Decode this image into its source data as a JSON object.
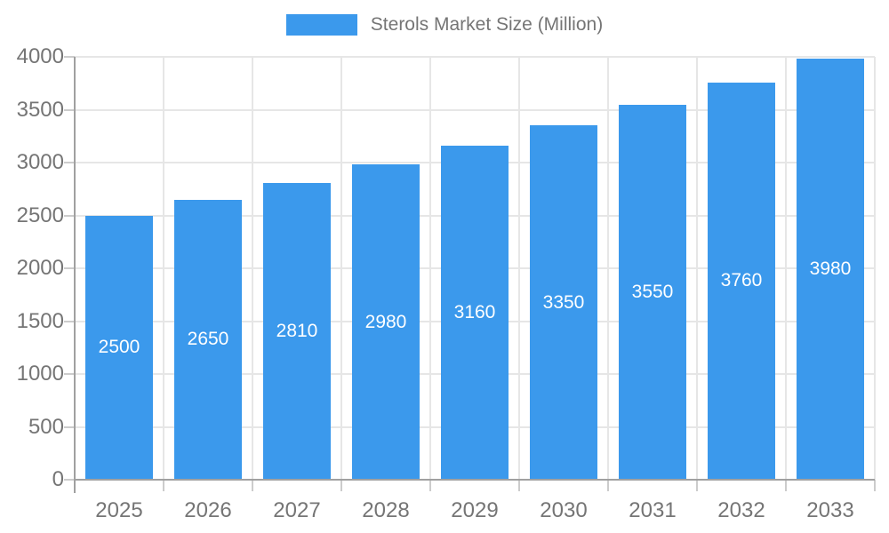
{
  "legend": {
    "label": "Sterols Market Size (Million)",
    "swatch_color": "#3B99EC"
  },
  "colors": {
    "bar": "#3B99EC",
    "bar_label_text": "#ffffff",
    "grid_line": "#e6e6e6",
    "axis_line": "#a0a0a0",
    "tick_mark": "#cccccc",
    "axis_text": "#757575",
    "legend_text": "#757575",
    "background": "#ffffff"
  },
  "chart_data": {
    "type": "bar",
    "title": "",
    "xlabel": "",
    "ylabel": "",
    "categories": [
      "2025",
      "2026",
      "2027",
      "2028",
      "2029",
      "2030",
      "2031",
      "2032",
      "2033"
    ],
    "series": [
      {
        "name": "Sterols Market Size (Million)",
        "color": "#3B99EC",
        "values": [
          2500,
          2650,
          2810,
          2980,
          3160,
          3350,
          3550,
          3760,
          3980
        ]
      }
    ],
    "value_labels": [
      "2500",
      "2650",
      "2810",
      "2980",
      "3160",
      "3350",
      "3550",
      "3760",
      "3980"
    ],
    "value_label_position": "inside-center",
    "ylim": [
      0,
      4000
    ],
    "ytick_step": 500,
    "yticks": [
      "0",
      "500",
      "1000",
      "1500",
      "2000",
      "2500",
      "3000",
      "3500",
      "4000"
    ],
    "grid": true,
    "legend_position": "top-center"
  }
}
